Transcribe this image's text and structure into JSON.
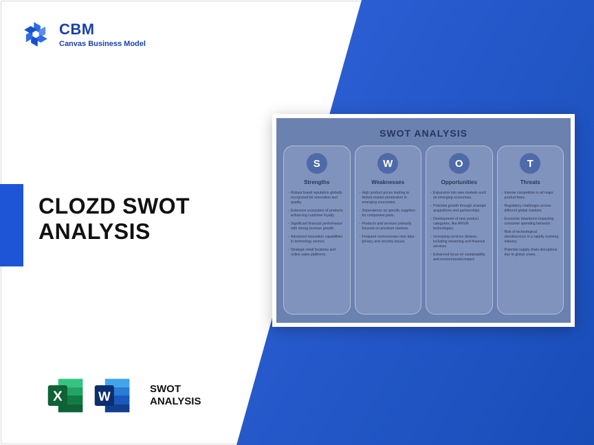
{
  "brand": {
    "abbr": "CBM",
    "tagline": "Canvas Business Model",
    "logo_colors": [
      "#2e6be6",
      "#1a4fc8",
      "#5b8df0"
    ]
  },
  "accent_color": "#1d55d6",
  "diagonal_gradient": [
    "#2f62d8",
    "#184db8"
  ],
  "title_line1": "CLOZD SWOT",
  "title_line2": "ANALYSIS",
  "file_icons": {
    "excel_colors": {
      "dark": "#107c41",
      "mid": "#21a366",
      "light": "#33c481",
      "band": "#0e6235",
      "letter": "X"
    },
    "word_colors": {
      "dark": "#103f91",
      "mid": "#185abd",
      "light": "#2b7cd3",
      "pale": "#41a5ee",
      "band": "#0b2e6e",
      "letter": "W"
    },
    "label_line1": "SWOT",
    "label_line2": "ANALYSIS"
  },
  "swot": {
    "type": "infographic",
    "card_bg": "#ffffff",
    "panel_bg": "#6b81b0",
    "col_bg": "#8093bc",
    "col_border": "#b4c0db",
    "badge_bg": "#4f6aa8",
    "badge_text_color": "#ffffff",
    "text_color": "#2a3654",
    "title": "SWOT ANALYSIS",
    "title_fontsize": 14,
    "heading_fontsize": 8,
    "item_fontsize": 5.2,
    "columns": [
      {
        "letter": "S",
        "heading": "Strengths",
        "items": [
          "Robust brand reputation globally recognized for innovation and quality.",
          "Extensive ecosystem of products enhancing customer loyalty.",
          "Significant financial performance with strong revenue growth.",
          "Advanced innovation capabilities in technology sectors.",
          "Strategic retail locations and online sales platforms."
        ]
      },
      {
        "letter": "W",
        "heading": "Weaknesses",
        "items": [
          "High product prices leading to limited market penetration in emerging economies.",
          "Dependence on specific suppliers for component parts.",
          "Products and services primarily focused on premium markets.",
          "Frequent controversies over data privacy and security issues."
        ]
      },
      {
        "letter": "O",
        "heading": "Opportunities",
        "items": [
          "Expansion into new markets such as emerging economies.",
          "Potential growth through strategic acquisitions and partnerships.",
          "Development of new product categories, like AR/VR technologies.",
          "Increasing services division, including streaming and financial services.",
          "Enhanced focus on sustainability and environmental impact."
        ]
      },
      {
        "letter": "T",
        "heading": "Threats",
        "items": [
          "Intense competition in all major product lines.",
          "Regulatory challenges across different global markets.",
          "Economic downturns impacting consumer spending behavior.",
          "Risk of technological obsolescence in a rapidly evolving industry.",
          "Potential supply chain disruptions due to global crises."
        ]
      }
    ]
  }
}
